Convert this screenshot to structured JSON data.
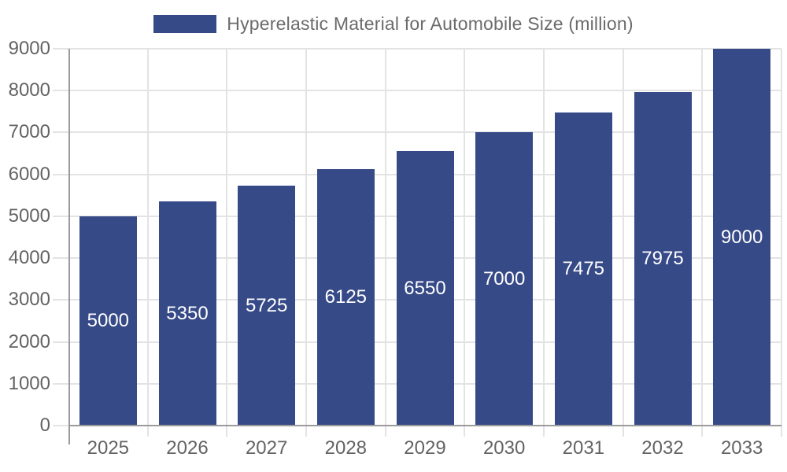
{
  "legend": {
    "label": "Hyperelastic Material for Automobile Size (million)",
    "swatch_color": "#374a88"
  },
  "chart_data": {
    "type": "bar",
    "title": "Hyperelastic Material for Automobile Size (million)",
    "categories": [
      "2025",
      "2026",
      "2027",
      "2028",
      "2029",
      "2030",
      "2031",
      "2032",
      "2033"
    ],
    "values": [
      5000,
      5350,
      5725,
      6125,
      6550,
      7000,
      7475,
      7975,
      9000
    ],
    "xlabel": "",
    "ylabel": "",
    "ylim": [
      0,
      9000
    ],
    "ytick_step": 1000,
    "ytick_labels": [
      "0",
      "1000",
      "2000",
      "3000",
      "4000",
      "5000",
      "6000",
      "7000",
      "8000",
      "9000"
    ],
    "grid": true,
    "legend_position": "top",
    "colors": {
      "bar": "#374a88",
      "value_label": "#ffffff",
      "grid": "#e3e3e3",
      "axis": "#9b9b9b",
      "tick_label": "#636363",
      "legend_text": "#6b6b6b"
    }
  }
}
